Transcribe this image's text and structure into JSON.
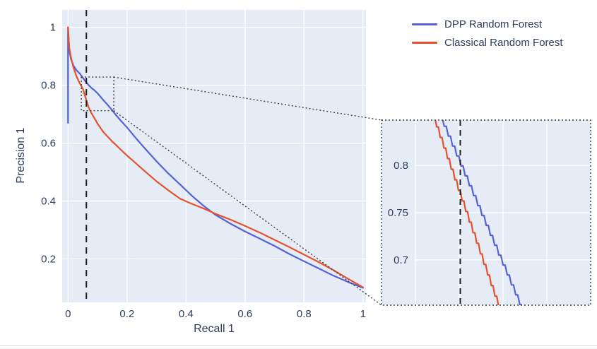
{
  "style": {
    "plot_bg": "#e5ecf6",
    "grid": "#ffffff",
    "tick_color": "#2a3f5f",
    "dash_color": "#1f1f1f",
    "zoom_line_color": "#3c3c3c",
    "divider_color": "#d9d9d9"
  },
  "chart_data": [
    {
      "id": "main",
      "type": "line",
      "title": "",
      "xlabel": "Recall 1",
      "ylabel": "Precision 1",
      "xlim": [
        -0.02,
        1.01
      ],
      "ylim": [
        0.05,
        1.06
      ],
      "x_ticks": [
        0,
        0.2,
        0.4,
        0.6,
        0.8,
        1
      ],
      "x_tick_labels": [
        "0",
        "0.2",
        "0.4",
        "0.6",
        "0.8",
        "1"
      ],
      "y_ticks": [
        0.2,
        0.4,
        0.6,
        0.8,
        1
      ],
      "y_tick_labels": [
        "0.2",
        "0.4",
        "0.6",
        "0.8",
        "1"
      ],
      "grid": true,
      "legend_position": "top-right",
      "dashed_vline_x": 0.062,
      "zoom_rect": {
        "x0": 0.045,
        "x1": 0.155,
        "y0": 0.712,
        "y1": 0.828
      },
      "series": [
        {
          "name": "DPP Random Forest",
          "color": "#5661d9",
          "x": [
            0,
            0,
            0.004,
            0.01,
            0.018,
            0.028,
            0.04,
            0.05,
            0.06,
            0.07,
            0.08,
            0.09,
            0.1,
            0.11,
            0.12,
            0.13,
            0.14,
            0.15,
            0.16,
            0.18,
            0.2,
            0.23,
            0.26,
            0.3,
            0.34,
            0.38,
            0.42,
            0.46,
            0.5,
            0.55,
            0.6,
            0.65,
            0.7,
            0.75,
            0.8,
            0.85,
            0.9,
            0.95,
            1
          ],
          "y": [
            0.67,
            1,
            0.92,
            0.89,
            0.868,
            0.852,
            0.84,
            0.826,
            0.812,
            0.8,
            0.79,
            0.782,
            0.772,
            0.76,
            0.748,
            0.737,
            0.725,
            0.713,
            0.7,
            0.676,
            0.654,
            0.617,
            0.582,
            0.537,
            0.495,
            0.457,
            0.418,
            0.383,
            0.352,
            0.322,
            0.295,
            0.27,
            0.245,
            0.217,
            0.192,
            0.167,
            0.142,
            0.12,
            0.1
          ]
        },
        {
          "name": "Classical Random Forest",
          "color": "#e5512e",
          "x": [
            0,
            0.004,
            0.01,
            0.018,
            0.028,
            0.04,
            0.05,
            0.06,
            0.07,
            0.08,
            0.09,
            0.1,
            0.11,
            0.12,
            0.13,
            0.14,
            0.15,
            0.16,
            0.18,
            0.2,
            0.23,
            0.26,
            0.3,
            0.34,
            0.38,
            0.42,
            0.46,
            0.5,
            0.55,
            0.6,
            0.65,
            0.7,
            0.75,
            0.8,
            0.85,
            0.9,
            0.95,
            1
          ],
          "y": [
            1,
            0.93,
            0.895,
            0.862,
            0.832,
            0.806,
            0.788,
            0.755,
            0.722,
            0.702,
            0.685,
            0.667,
            0.652,
            0.638,
            0.627,
            0.616,
            0.605,
            0.596,
            0.576,
            0.557,
            0.53,
            0.503,
            0.468,
            0.437,
            0.408,
            0.39,
            0.374,
            0.356,
            0.336,
            0.314,
            0.291,
            0.266,
            0.241,
            0.215,
            0.189,
            0.161,
            0.131,
            0.102
          ]
        }
      ]
    },
    {
      "id": "inset-zoom",
      "type": "line",
      "title": "",
      "xlim": [
        0.03,
        0.155
      ],
      "ylim": [
        0.652,
        0.848
      ],
      "x_ticks": [],
      "x_tick_labels": [],
      "y_ticks": [
        0.7,
        0.75,
        0.8
      ],
      "y_tick_labels": [
        "0.7",
        "0.75",
        "0.8"
      ],
      "grid": true,
      "dashed_vline_x": 0.062,
      "series": [
        {
          "name": "DPP Random Forest",
          "color": "#5661d9",
          "x": [
            0.0475,
            0.049,
            0.0505,
            0.052,
            0.0535,
            0.055,
            0.0565,
            0.058,
            0.0595,
            0.061,
            0.0625,
            0.064,
            0.0655,
            0.067,
            0.0685,
            0.07,
            0.0715,
            0.073,
            0.0745,
            0.076,
            0.0775,
            0.079,
            0.0805,
            0.082,
            0.0835,
            0.085,
            0.0865,
            0.088,
            0.0895,
            0.091,
            0.0925,
            0.094,
            0.0955,
            0.097,
            0.0985,
            0.1,
            0.1015,
            0.103,
            0.1045,
            0.106
          ],
          "y": [
            0.852,
            0.852,
            0.8415,
            0.8415,
            0.831,
            0.831,
            0.8205,
            0.8205,
            0.81,
            0.81,
            0.7995,
            0.7995,
            0.789,
            0.789,
            0.7785,
            0.7785,
            0.768,
            0.768,
            0.7575,
            0.7575,
            0.747,
            0.747,
            0.7365,
            0.7365,
            0.726,
            0.726,
            0.7155,
            0.7155,
            0.705,
            0.705,
            0.6945,
            0.6945,
            0.684,
            0.684,
            0.6735,
            0.6735,
            0.663,
            0.663,
            0.6525,
            0.6525
          ]
        },
        {
          "name": "Classical Random Forest",
          "color": "#e5512e",
          "x": [
            0.0425,
            0.0438,
            0.0451,
            0.0464,
            0.0477,
            0.049,
            0.0503,
            0.0516,
            0.0529,
            0.0542,
            0.0555,
            0.0568,
            0.0581,
            0.0594,
            0.0607,
            0.062,
            0.0633,
            0.0646,
            0.0659,
            0.0672,
            0.0685,
            0.0698,
            0.0711,
            0.0724,
            0.0737,
            0.075,
            0.0763,
            0.0776,
            0.0789,
            0.0802,
            0.0815,
            0.0828,
            0.0841,
            0.0854,
            0.0867,
            0.088,
            0.0893,
            0.0906
          ],
          "y": [
            0.852,
            0.852,
            0.8408,
            0.8408,
            0.8296,
            0.8296,
            0.8184,
            0.8184,
            0.8072,
            0.8072,
            0.796,
            0.796,
            0.7848,
            0.7848,
            0.7736,
            0.7736,
            0.7624,
            0.7624,
            0.7512,
            0.7512,
            0.74,
            0.74,
            0.7288,
            0.7288,
            0.7176,
            0.7176,
            0.7064,
            0.7064,
            0.6952,
            0.6952,
            0.684,
            0.684,
            0.6728,
            0.6728,
            0.6616,
            0.6616,
            0.6504,
            0.6504
          ]
        }
      ]
    }
  ]
}
